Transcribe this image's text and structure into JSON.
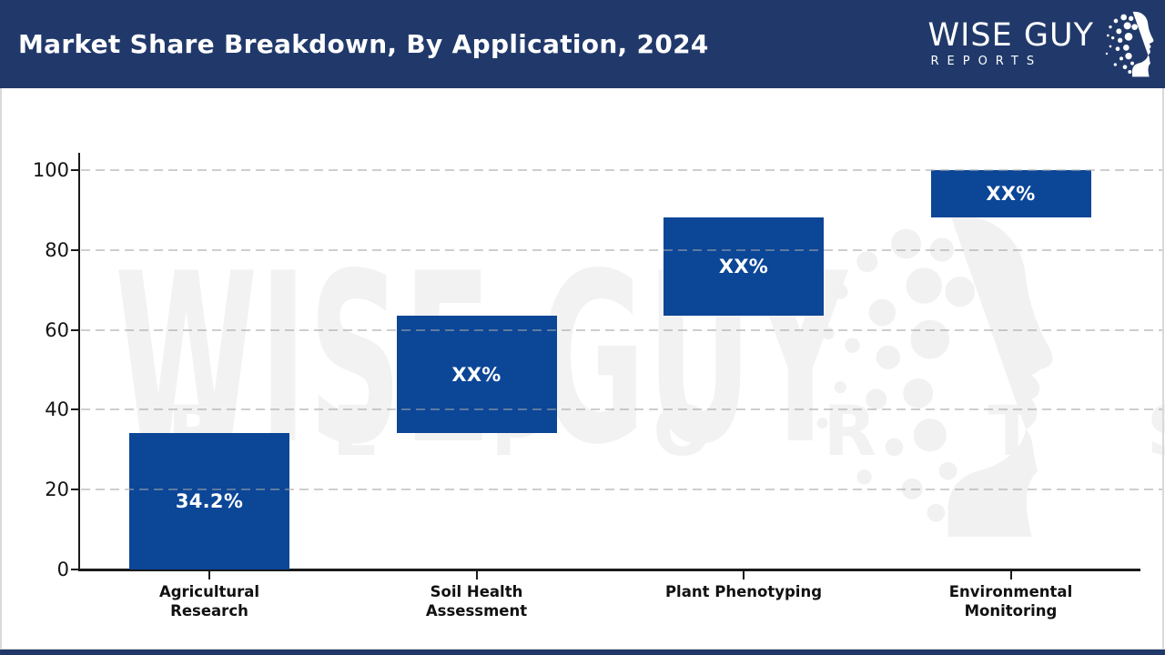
{
  "header": {
    "title": "Market Share Breakdown, By Application, 2024",
    "logo": {
      "line1": "WISE GUY",
      "line2": "REPORTS"
    }
  },
  "watermark": {
    "line1": "WISE GUY",
    "line2": "REPORTS"
  },
  "colors": {
    "header_bg": "#21396a",
    "bar_blue": "#0b4697",
    "grid_gray": "#dcdcdc",
    "watermark_gray": "#f2f2f2",
    "axis_black": "#1a1a1a"
  },
  "chart_data": {
    "type": "bar",
    "subtype": "waterfall",
    "title": "Market Share Breakdown, By Application, 2024",
    "xlabel": "",
    "ylabel": "",
    "ylim": [
      0,
      107
    ],
    "yticks": [
      0,
      20,
      40,
      60,
      80,
      100
    ],
    "grid": "horizontal-dashed",
    "bar_color": "#0b4697",
    "categories": [
      "Agricultural Research",
      "Soil Health Assessment",
      "Plant Phenotyping",
      "Environmental Monitoring"
    ],
    "segments": [
      {
        "category": "Agricultural Research",
        "category_lines": [
          "Agricultural",
          "Research"
        ],
        "start": 0,
        "end": 34.2,
        "value": 34.2,
        "label": "34.2%"
      },
      {
        "category": "Soil Health Assessment",
        "category_lines": [
          "Soil Health",
          "Assessment"
        ],
        "start": 34.2,
        "end": 63.5,
        "value": 29.3,
        "label": "XX%"
      },
      {
        "category": "Plant Phenotyping",
        "category_lines": [
          "Plant Phenotyping"
        ],
        "start": 63.5,
        "end": 88.2,
        "value": 24.7,
        "label": "XX%"
      },
      {
        "category": "Environmental Monitoring",
        "category_lines": [
          "Environmental",
          "Monitoring"
        ],
        "start": 88.2,
        "end": 100,
        "value": 11.8,
        "label": "XX%"
      }
    ]
  }
}
